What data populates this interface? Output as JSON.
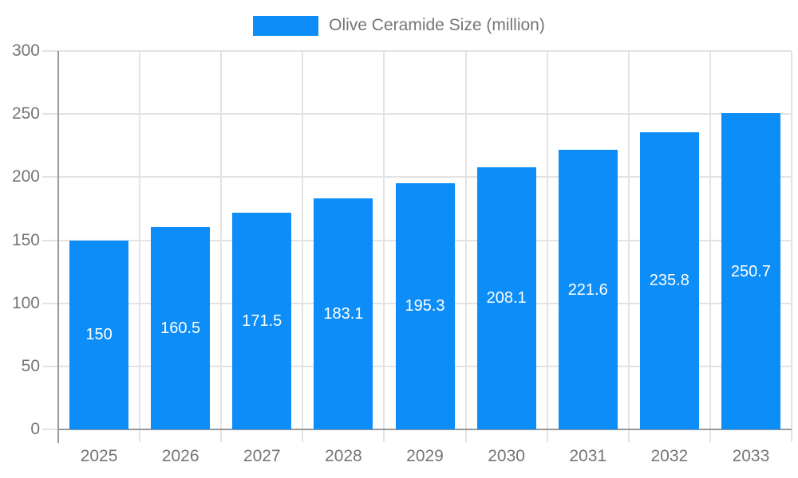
{
  "legend": {
    "label": "Olive Ceramide Size (million)"
  },
  "chart_data": {
    "type": "bar",
    "title": "",
    "xlabel": "",
    "ylabel": "",
    "categories": [
      "2025",
      "2026",
      "2027",
      "2028",
      "2029",
      "2030",
      "2031",
      "2032",
      "2033"
    ],
    "series": [
      {
        "name": "Olive Ceramide Size (million)",
        "values": [
          150,
          160.5,
          171.5,
          183.1,
          195.3,
          208.1,
          221.6,
          235.8,
          250.7
        ]
      }
    ],
    "ylim": [
      0,
      300
    ],
    "y_ticks": [
      0,
      50,
      100,
      150,
      200,
      250,
      300
    ],
    "grid": true,
    "legend_position": "top",
    "colors": {
      "bar": "#0d8df7",
      "bar_label": "#ffffff",
      "axis": "#999999",
      "grid": "#e3e3e3",
      "tick_text": "#757575"
    }
  }
}
